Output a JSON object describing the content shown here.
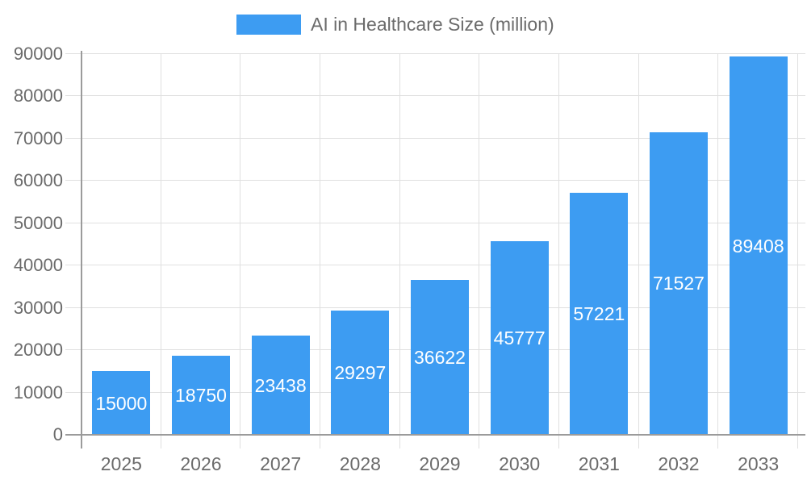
{
  "chart_data": {
    "type": "bar",
    "title": "AI in Healthcare Size (million)",
    "legend_label": "AI in Healthcare Size (million)",
    "legend_position": "top-center",
    "categories": [
      "2025",
      "2026",
      "2027",
      "2028",
      "2029",
      "2030",
      "2031",
      "2032",
      "2033"
    ],
    "values": [
      15000,
      18750,
      23438,
      29297,
      36622,
      45777,
      57221,
      71527,
      89408
    ],
    "xlabel": "",
    "ylabel": "",
    "ylim": [
      0,
      90000
    ],
    "ytick_step": 10000,
    "grid": true,
    "value_labels": "inside-center-white",
    "colors": {
      "bar": "#3d9cf2",
      "grid_line": "#e0e0e0",
      "axis_line": "#9b9b9b",
      "axis_text": "#6b6b6b",
      "value_text": "#ffffff",
      "background": "#ffffff"
    }
  }
}
